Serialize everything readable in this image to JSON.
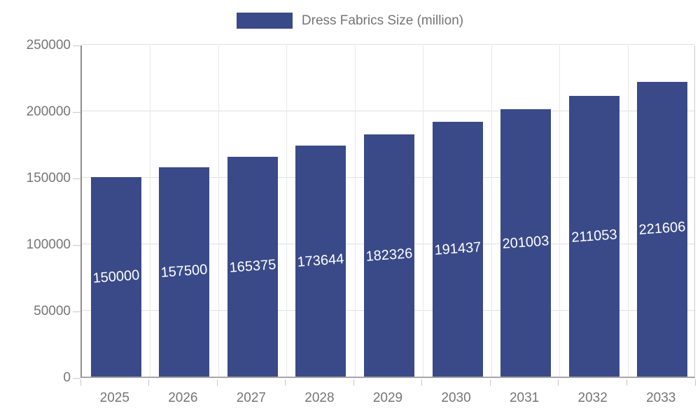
{
  "legend": {
    "label": "Dress Fabrics Size (million)"
  },
  "chart_data": {
    "type": "bar",
    "title": "Dress Fabrics Size (million)",
    "categories": [
      "2025",
      "2026",
      "2027",
      "2028",
      "2029",
      "2030",
      "2031",
      "2032",
      "2033"
    ],
    "values": [
      150000,
      157500,
      165375,
      173644,
      182326,
      191437,
      201003,
      211053,
      221606
    ],
    "bar_value_labels": [
      "150000",
      "157500",
      "165375",
      "173644",
      "182326",
      "191437",
      "201003",
      "211053",
      "221606"
    ],
    "xlabel": "",
    "ylabel": "",
    "ylim": [
      0,
      250000
    ],
    "yticks": [
      0,
      50000,
      100000,
      150000,
      200000,
      250000
    ],
    "grid": true,
    "legend_position": "top-center",
    "colors": {
      "bar": "#3A4A88",
      "bar_label_text": "#FFFFFF",
      "tick_label_text": "#757575",
      "legend_text": "#757575",
      "axis_line_left": "#8C8C8C",
      "axis_line_bottom": "#A6A6A6",
      "plot_border_right": "#CCCCCC",
      "tick_mark": "#C8C8C8",
      "gridline_h": "#E0E0E0",
      "gridline_v": "#E8E8E8",
      "background": "#FFFFFF"
    }
  }
}
